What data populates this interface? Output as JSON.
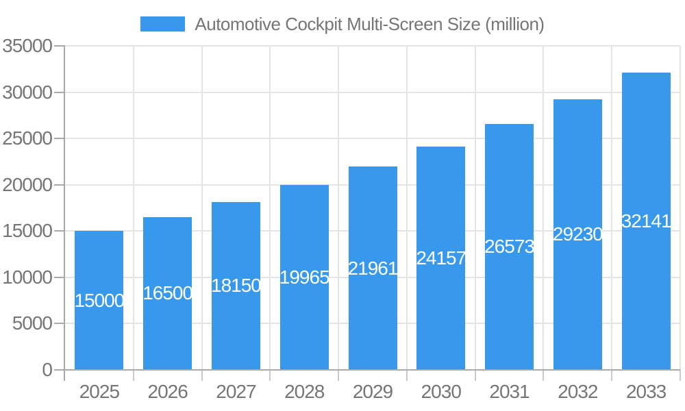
{
  "chart_data": {
    "type": "bar",
    "title": "Automotive Cockpit Multi-Screen Size (million)",
    "legend": {
      "position": "top-center",
      "entries": [
        "Automotive Cockpit Multi-Screen Size (million)"
      ]
    },
    "categories": [
      "2025",
      "2026",
      "2027",
      "2028",
      "2029",
      "2030",
      "2031",
      "2032",
      "2033"
    ],
    "values": [
      15000,
      16500,
      18150,
      19965,
      21961,
      24157,
      26573,
      29230,
      32141
    ],
    "value_labels": [
      "15000",
      "16500",
      "18150",
      "19965",
      "21961",
      "24157",
      "26573",
      "29230",
      "32141"
    ],
    "xlabel": "",
    "ylabel": "",
    "ylim": [
      0,
      35000
    ],
    "ytick_step": 5000,
    "ytick_labels": [
      "0",
      "5000",
      "10000",
      "15000",
      "20000",
      "25000",
      "30000",
      "35000"
    ],
    "grid": true,
    "colors": {
      "bar": "#3899EC",
      "axis_text": "#757575",
      "grid_line": "#E3E3E3",
      "axis_line": "#A9A9A9",
      "tick_line": "#C9C9C9",
      "value_label": "#FFFFFF",
      "background": "#FFFFFF"
    }
  }
}
